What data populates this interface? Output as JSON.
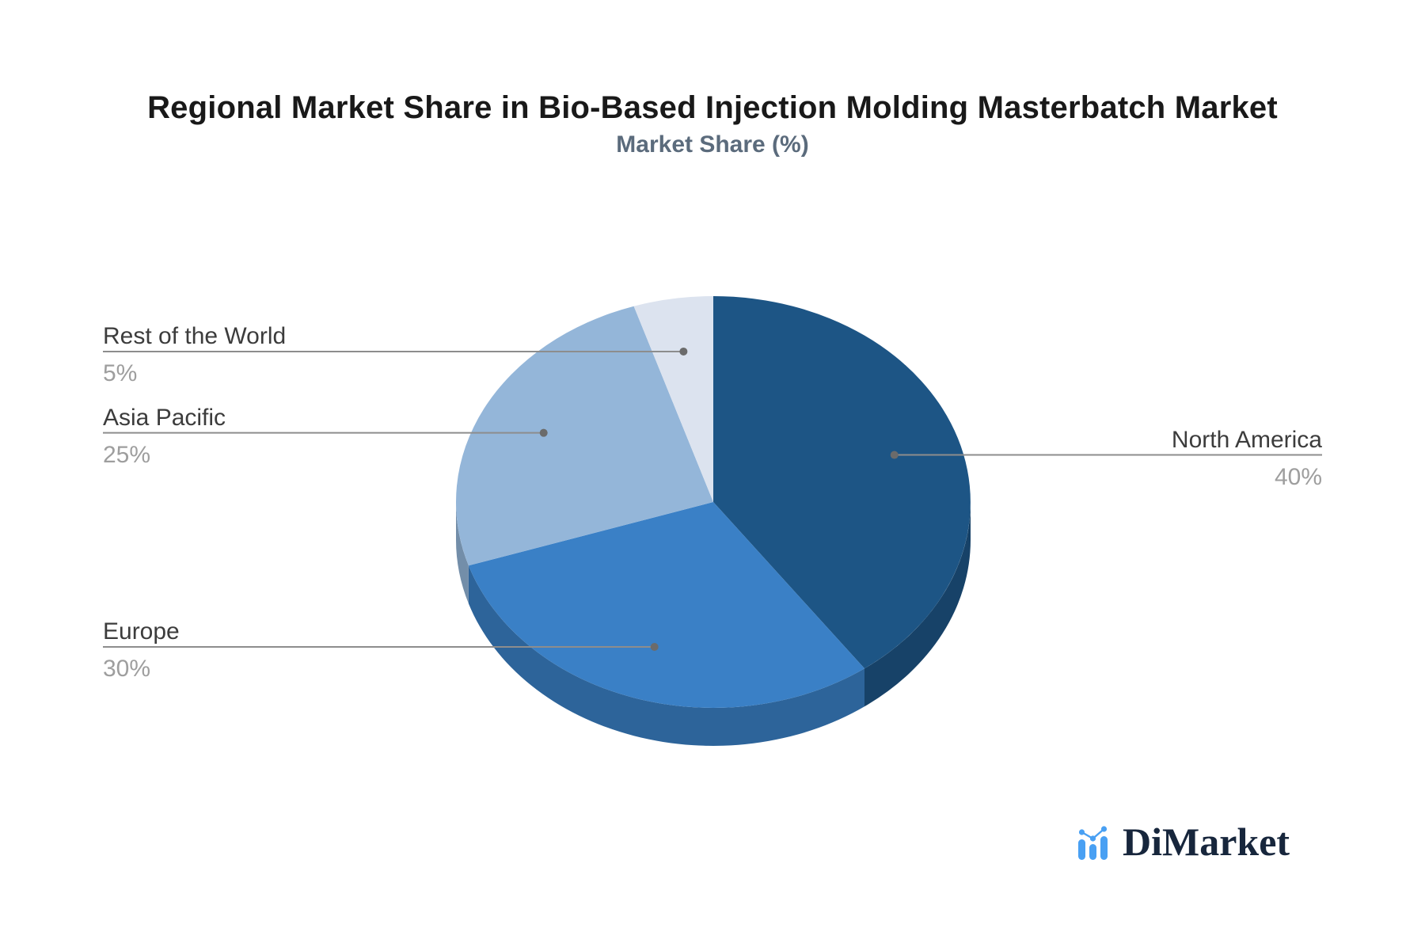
{
  "header": {
    "title": "Regional Market Share in Bio-Based Injection Molding Masterbatch Market",
    "subtitle": "Market Share (%)"
  },
  "chart_data": {
    "type": "pie",
    "style": "3d",
    "title": "Regional Market Share in Bio-Based Injection Molding Masterbatch Market",
    "subtitle": "Market Share (%)",
    "unit": "%",
    "start_angle_deg": 0,
    "direction": "clockwise",
    "legend_position": "callout-labels",
    "slices": [
      {
        "label": "North America",
        "value": 40,
        "pct_label": "40%",
        "color": "#1d5585"
      },
      {
        "label": "Europe",
        "value": 30,
        "pct_label": "30%",
        "color": "#3a80c6"
      },
      {
        "label": "Asia Pacific",
        "value": 25,
        "pct_label": "25%",
        "color": "#94b6d9"
      },
      {
        "label": "Rest of the World",
        "value": 5,
        "pct_label": "5%",
        "color": "#dce3ef"
      }
    ],
    "leader_line_color": "#8d8d8d",
    "dot_color": "#6b6b6b",
    "label_color": "#3c3c3c",
    "pct_color": "#9e9e9e"
  },
  "branding": {
    "logo_text": "DiMarket",
    "logo_text_color": "#17263c",
    "icon_color": "#49a0f3",
    "icon_name": "bar-line-chart-icon"
  }
}
